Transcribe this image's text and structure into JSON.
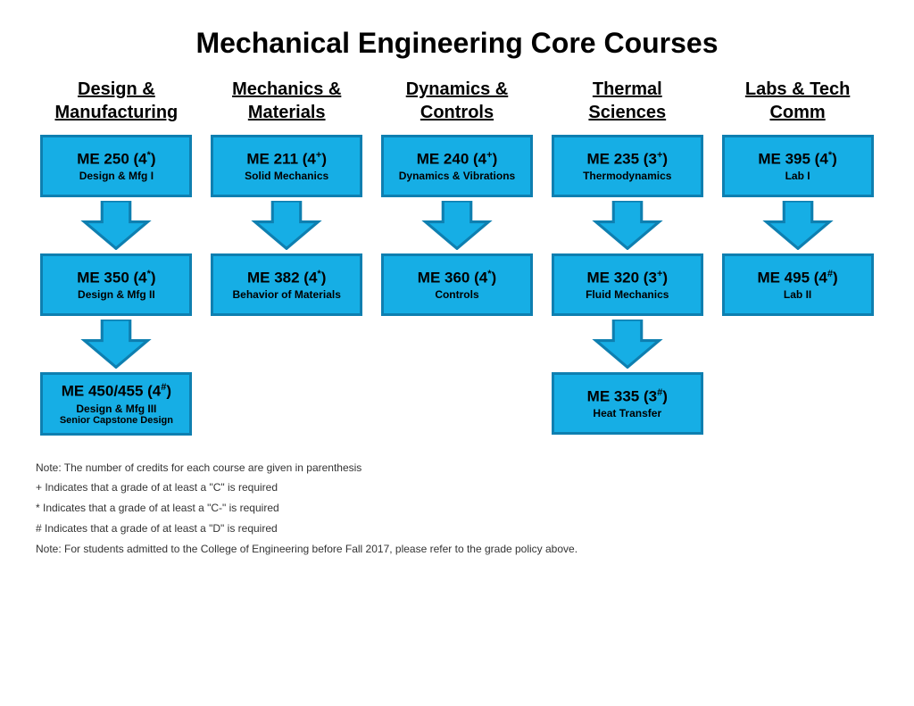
{
  "title": "Mechanical Engineering Core Courses",
  "colors": {
    "node_fill": "#16aee5",
    "node_border": "#0e7fb0",
    "arrow_fill": "#16aee5",
    "arrow_border": "#0e7fb0",
    "background": "#ffffff",
    "text": "#000000"
  },
  "columns": [
    {
      "header_line1": "Design &",
      "header_line2": "Manufacturing",
      "nodes": [
        {
          "code": "ME 250 (4",
          "sup": "*",
          "code_close": ")",
          "sub1": "Design & Mfg I",
          "sub2": "",
          "arrow_after": true
        },
        {
          "code": "ME 350 (4",
          "sup": "*",
          "code_close": ")",
          "sub1": "Design & Mfg II",
          "sub2": "",
          "arrow_after": true
        },
        {
          "code": "ME 450/455 (4",
          "sup": "#",
          "code_close": ")",
          "sub1": "Design & Mfg III",
          "sub2": "Senior Capstone Design",
          "arrow_after": false
        }
      ]
    },
    {
      "header_line1": "Mechanics &",
      "header_line2": "Materials",
      "nodes": [
        {
          "code": "ME 211 (4",
          "sup": "+",
          "code_close": ")",
          "sub1": "Solid Mechanics",
          "sub2": "",
          "arrow_after": true
        },
        {
          "code": "ME 382 (4",
          "sup": "*",
          "code_close": ")",
          "sub1": "Behavior of Materials",
          "sub2": "",
          "arrow_after": false
        }
      ]
    },
    {
      "header_line1": "Dynamics &",
      "header_line2": "Controls",
      "nodes": [
        {
          "code": "ME 240 (4",
          "sup": "+",
          "code_close": ")",
          "sub1": "Dynamics & Vibrations",
          "sub2": "",
          "arrow_after": true
        },
        {
          "code": "ME 360 (4",
          "sup": "*",
          "code_close": ")",
          "sub1": "Controls",
          "sub2": "",
          "arrow_after": false
        }
      ]
    },
    {
      "header_line1": "Thermal",
      "header_line2": "Sciences",
      "nodes": [
        {
          "code": "ME 235 (3",
          "sup": "+",
          "code_close": ")",
          "sub1": "Thermodynamics",
          "sub2": "",
          "arrow_after": true
        },
        {
          "code": "ME 320 (3",
          "sup": "+",
          "code_close": ")",
          "sub1": "Fluid Mechanics",
          "sub2": "",
          "arrow_after": true
        },
        {
          "code": "ME 335 (3",
          "sup": "#",
          "code_close": ")",
          "sub1": "Heat Transfer",
          "sub2": "",
          "arrow_after": false
        }
      ]
    },
    {
      "header_line1": "Labs & Tech",
      "header_line2": "Comm",
      "nodes": [
        {
          "code": "ME 395 (4",
          "sup": "*",
          "code_close": ")",
          "sub1": "Lab I",
          "sub2": "",
          "arrow_after": true
        },
        {
          "code": "ME 495 (4",
          "sup": "#",
          "code_close": ")",
          "sub1": "Lab II",
          "sub2": "",
          "arrow_after": false
        }
      ]
    }
  ],
  "notes": [
    "Note: The number of credits for each course are given in parenthesis",
    "+ Indicates that a grade of at least a \"C\" is required",
    "* Indicates that a grade of at least a \"C-\" is required",
    "# Indicates that a grade of at least a \"D\" is required",
    "Note: For students admitted to the College of Engineering before Fall 2017, please refer to the grade policy above."
  ]
}
